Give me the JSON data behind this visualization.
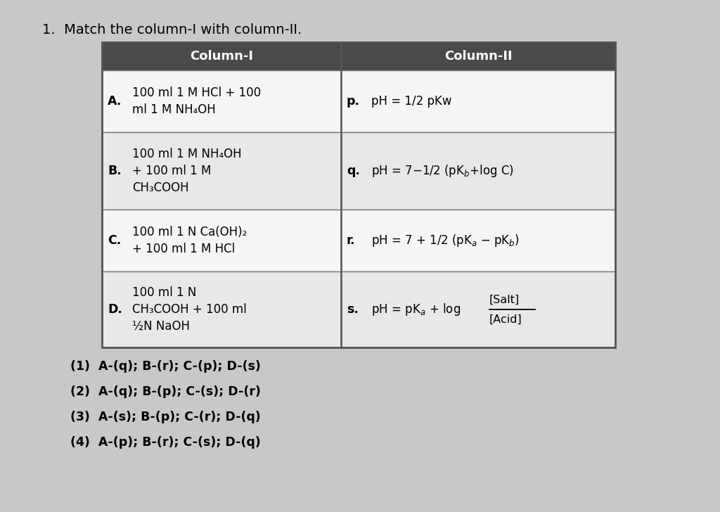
{
  "title": "1.  Match the column-I with column-II.",
  "title_fontsize": 14,
  "page_bg": "#c8c8c8",
  "header_color": "#4a4a4a",
  "header_text_color": "#ffffff",
  "row_colors_odd": "#f5f5f5",
  "row_colors_even": "#e8e8e8",
  "col1_header": "Column-I",
  "col2_header": "Column-II",
  "table_border_color": "#555555",
  "cell_border_color": "#777777",
  "options": [
    "(1)  A-(q); B-(r); C-(p); D-(s)",
    "(2)  A-(q); B-(p); C-(s); D-(r)",
    "(3)  A-(s); B-(p); C-(r); D-(q)",
    "(4)  A-(p); B-(r); C-(s); D-(q)"
  ],
  "options_fontsize": 12.5
}
